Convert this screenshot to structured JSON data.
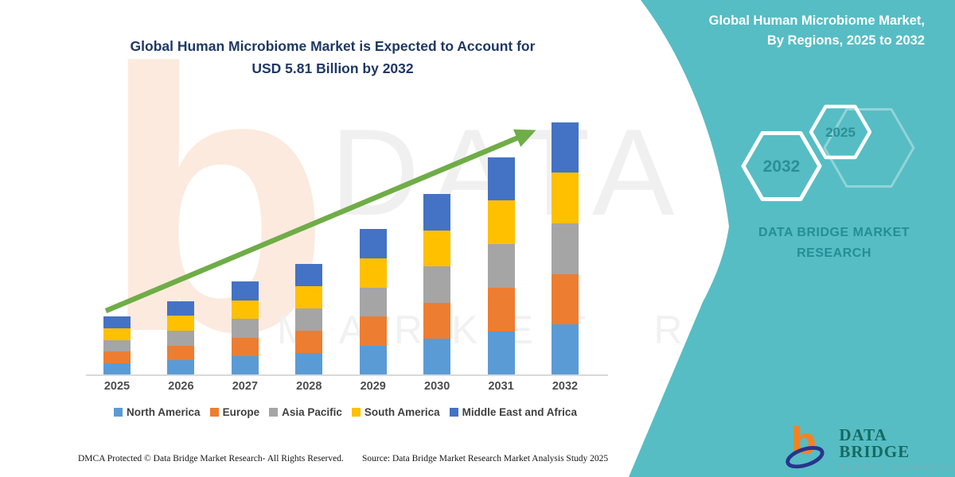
{
  "title": {
    "line1": "Global Human Microbiome Market is Expected to Account for",
    "line2": "USD 5.81 Billion by 2032"
  },
  "panel": {
    "heading_line1": "Global Human Microbiome Market,",
    "heading_line2": "By Regions, 2025 to 2032",
    "hexagon_large_label": "2032",
    "hexagon_small_label": "2025",
    "brand_text": "DATA BRIDGE MARKET RESEARCH",
    "background_color": "#56BDC4"
  },
  "logo": {
    "name": "DATA BRIDGE",
    "sub": "MARKET RESEARCH"
  },
  "watermark": {
    "letter": "b",
    "banner": "DATA BRI",
    "strip": "MARKET RESEARCH"
  },
  "footer": {
    "left": "DMCA Protected © Data Bridge Market Research- All Rights Reserved.",
    "source": "Source: Data Bridge Market Research Market Analysis Study 2025"
  },
  "chart_data": {
    "type": "bar",
    "stacked": true,
    "title": "Global Human Microbiome Market is Expected to Account for USD 5.81 Billion by 2032",
    "unit": "USD Billion",
    "categories": [
      "2025",
      "2026",
      "2027",
      "2028",
      "2029",
      "2030",
      "2031",
      "2032"
    ],
    "totals": [
      1.33,
      1.71,
      2.13,
      2.53,
      3.37,
      4.17,
      4.99,
      5.81
    ],
    "series": [
      {
        "name": "North America",
        "color": "#5B9BD5",
        "values": [
          0.27,
          0.34,
          0.43,
          0.51,
          0.67,
          0.83,
          1.0,
          1.16
        ]
      },
      {
        "name": "Europe",
        "color": "#ED7D31",
        "values": [
          0.27,
          0.34,
          0.43,
          0.51,
          0.67,
          0.83,
          1.0,
          1.16
        ]
      },
      {
        "name": "Asia Pacific",
        "color": "#A5A5A5",
        "values": [
          0.27,
          0.34,
          0.43,
          0.51,
          0.67,
          0.83,
          1.0,
          1.16
        ]
      },
      {
        "name": "South America",
        "color": "#FFC000",
        "values": [
          0.27,
          0.34,
          0.43,
          0.51,
          0.67,
          0.83,
          1.0,
          1.16
        ]
      },
      {
        "name": "Middle East and Africa",
        "color": "#4472C4",
        "values": [
          0.27,
          0.34,
          0.43,
          0.51,
          0.67,
          0.83,
          1.0,
          1.16
        ]
      }
    ],
    "ylim": [
      0,
      6
    ],
    "grid": false,
    "legend_position": "bottom",
    "trend_arrow_color": "#6FAD47",
    "xlabel": "",
    "ylabel": ""
  }
}
